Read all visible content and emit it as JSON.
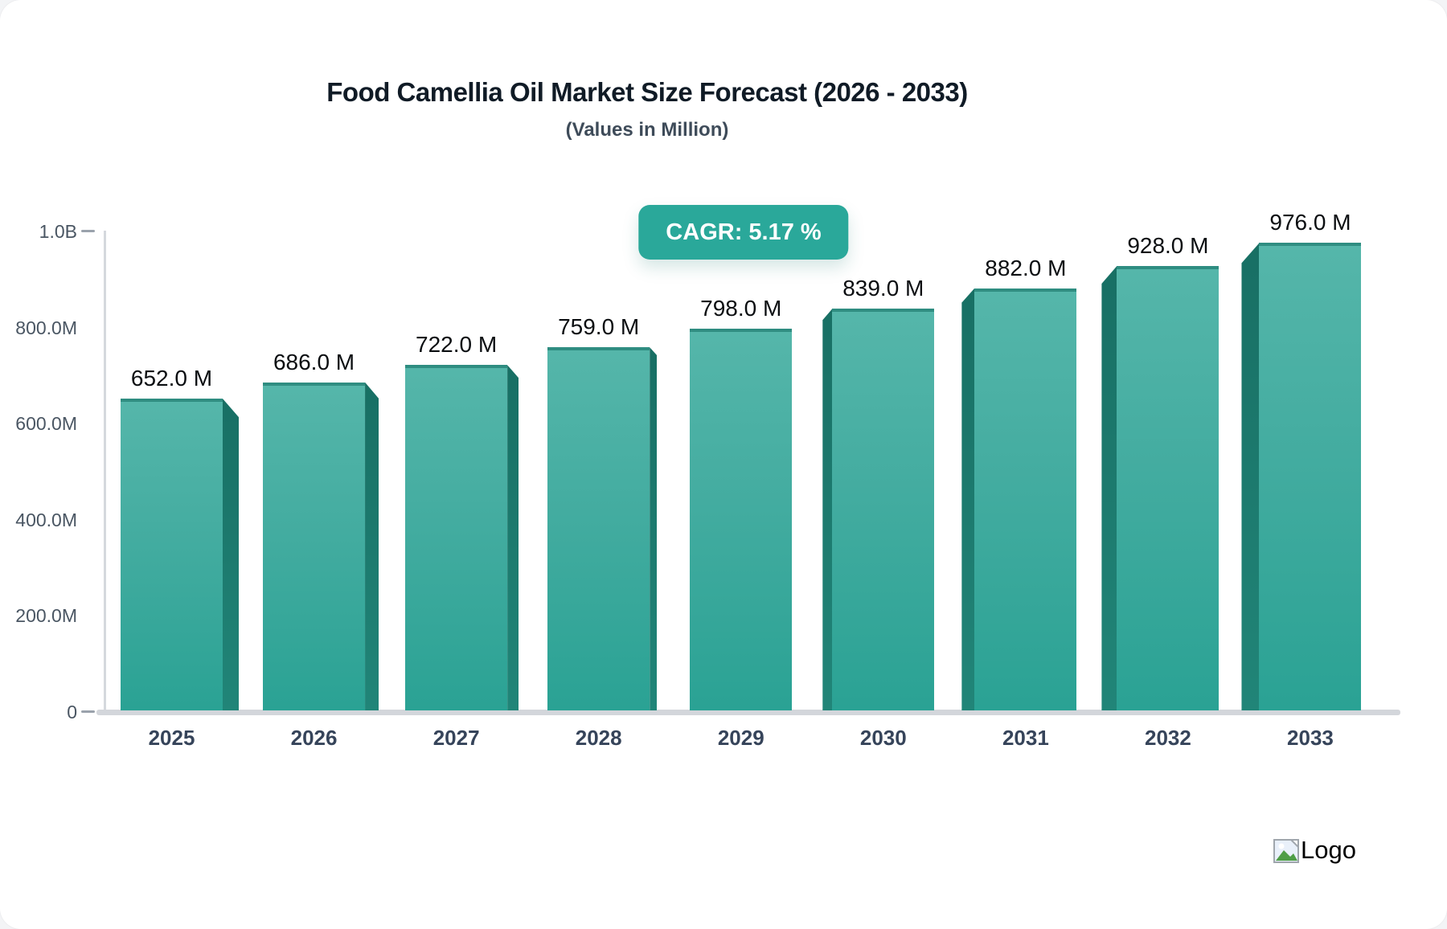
{
  "header": {
    "title": "Food Camellia Oil Market Size Forecast (2026 - 2033)",
    "subtitle": "(Values in Million)",
    "cagr_badge": "CAGR: 5.17 %"
  },
  "footer": {
    "logo_text": "Logo",
    "logo_icon": "broken-image-icon"
  },
  "chart_data": {
    "type": "bar",
    "title": "Food Camellia Oil Market Size Forecast (2026 - 2033)",
    "subtitle": "(Values in Million)",
    "annotation": "CAGR: 5.17 %",
    "categories": [
      "2025",
      "2026",
      "2027",
      "2028",
      "2029",
      "2030",
      "2031",
      "2032",
      "2033"
    ],
    "values_million": [
      652,
      686,
      722,
      759,
      798,
      839,
      882,
      928,
      976
    ],
    "value_labels": [
      "652.0 M",
      "686.0 M",
      "722.0 M",
      "759.0 M",
      "798.0 M",
      "839.0 M",
      "882.0 M",
      "928.0 M",
      "976.0 M"
    ],
    "ylim_million": [
      0,
      1000
    ],
    "yticks": [
      {
        "value": 0,
        "label": "0"
      },
      {
        "value": 200,
        "label": "200.0M"
      },
      {
        "value": 400,
        "label": "400.0M"
      },
      {
        "value": 600,
        "label": "600.0M"
      },
      {
        "value": 800,
        "label": "800.0M"
      },
      {
        "value": 1000,
        "label": "1.0B"
      }
    ],
    "legend": "none",
    "grid": "off",
    "style": "3d-extruded-bars",
    "colors": {
      "bar_gradient_top": "#55b6aa",
      "bar_gradient_bottom": "#2aa294",
      "bar_top_cap": "#2f8d81",
      "bar_side": "#1b7568",
      "badge_background": "#2aa89a",
      "badge_text": "#ffffff",
      "axis_line": "#d5d8dd",
      "tick_mark": "#9aa2ac",
      "title_text": "#101b26",
      "subtitle_text": "#3e4b59",
      "y_label_text": "#4a5663",
      "x_label_text": "#36445a",
      "value_label_text": "#0b0e11"
    }
  }
}
